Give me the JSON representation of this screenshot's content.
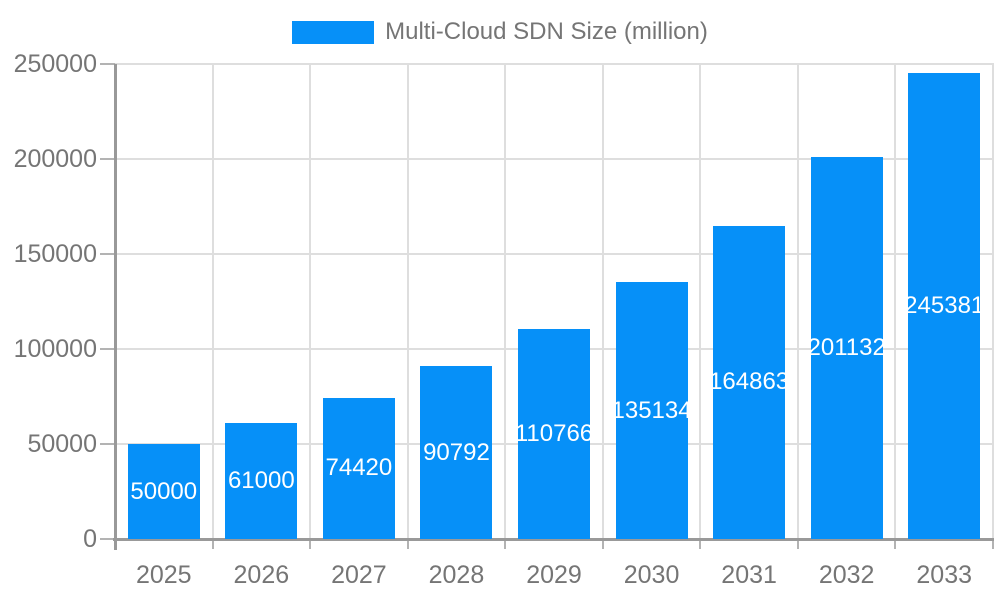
{
  "chart_data": {
    "type": "bar",
    "title": "Multi-Cloud SDN Size (million)",
    "categories": [
      "2025",
      "2026",
      "2027",
      "2028",
      "2029",
      "2030",
      "2031",
      "2032",
      "2033"
    ],
    "values": [
      50000,
      61000,
      74420,
      90792,
      110766,
      135134,
      164863,
      201132,
      245381
    ],
    "bar_labels": [
      "50000",
      "61000",
      "74420",
      "90792",
      "110766",
      "135134",
      "164863",
      "201132",
      "245381"
    ],
    "y_ticks": [
      0,
      50000,
      100000,
      150000,
      200000,
      250000
    ],
    "ylim": [
      0,
      250000
    ],
    "xlabel": "",
    "ylabel": "",
    "legend_position": "top",
    "grid": true,
    "bar_label_position": "inside-center",
    "colors": {
      "bar": "#0690f8",
      "bar_label": "#ffffff",
      "axis_text": "#757575",
      "legend_text": "#757575",
      "gridline": "#dedede",
      "axis_line": "#999999",
      "tick": "#b3b3b3",
      "background": "#ffffff"
    }
  }
}
